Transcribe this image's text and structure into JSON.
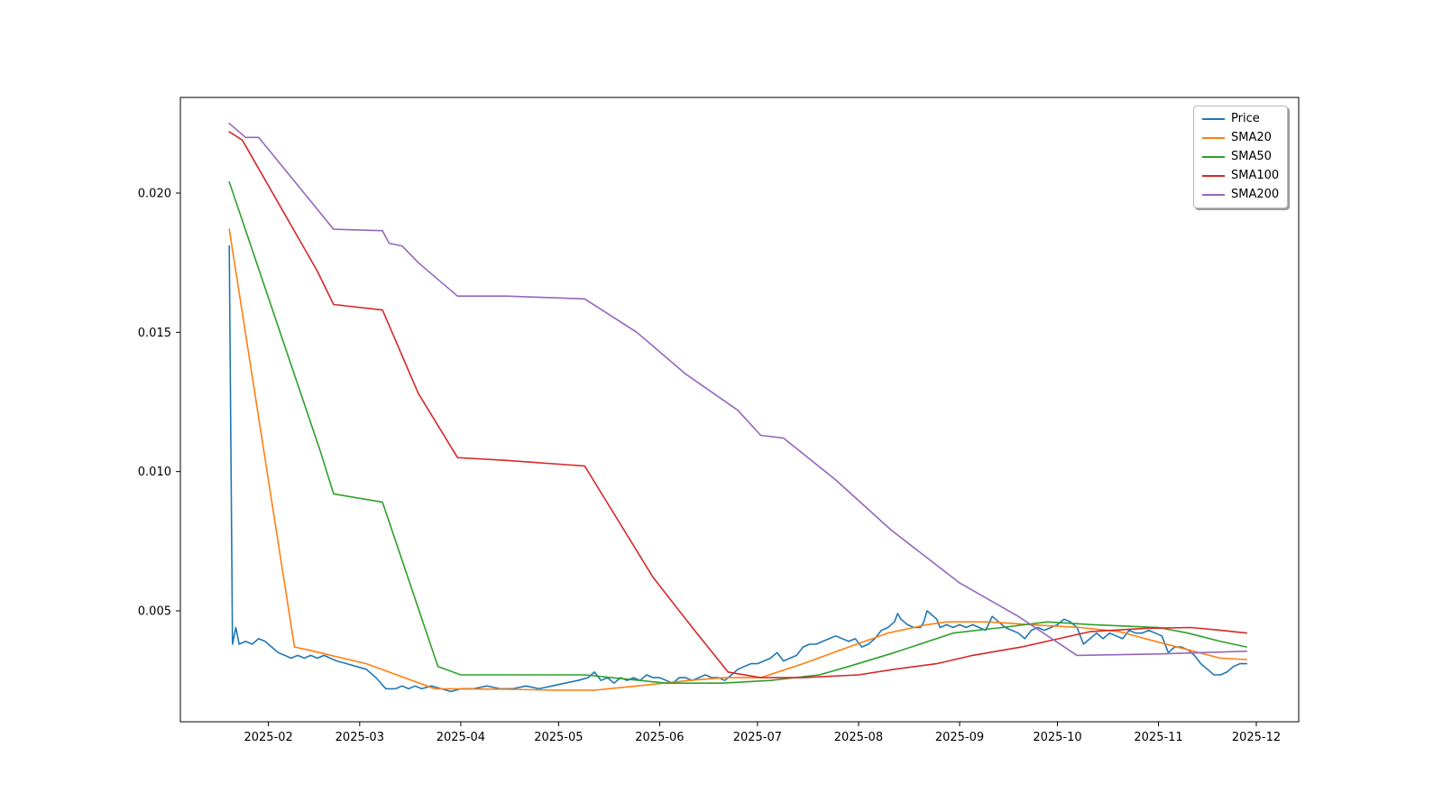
{
  "chart_data": {
    "type": "line",
    "title": "",
    "xlabel": "",
    "ylabel": "",
    "grid": false,
    "legend": {
      "position": "upper right",
      "entries": [
        "Price",
        "SMA20",
        "SMA50",
        "SMA100",
        "SMA200"
      ]
    },
    "x_axis": {
      "xlim": [
        "2025-01-05",
        "2025-12-14"
      ],
      "tick_dates": [
        "2025-02-01",
        "2025-03-01",
        "2025-04-01",
        "2025-05-01",
        "2025-06-01",
        "2025-07-01",
        "2025-08-01",
        "2025-09-01",
        "2025-10-01",
        "2025-11-01",
        "2025-12-01"
      ],
      "tick_labels": [
        "2025-02",
        "2025-03",
        "2025-04",
        "2025-05",
        "2025-06",
        "2025-07",
        "2025-08",
        "2025-09",
        "2025-10",
        "2025-11",
        "2025-12"
      ]
    },
    "y_axis": {
      "ylim": [
        0.001015,
        0.023434
      ],
      "tick_values": [
        0.005,
        0.01,
        0.015,
        0.02
      ],
      "tick_labels": [
        "0.005",
        "0.010",
        "0.015",
        "0.020"
      ]
    },
    "series": [
      {
        "name": "Price",
        "color": "#1f77b4",
        "points": [
          [
            "2025-01-20",
            0.0181
          ],
          [
            "2025-01-21",
            0.0038
          ],
          [
            "2025-01-22",
            0.0044
          ],
          [
            "2025-01-23",
            0.0038
          ],
          [
            "2025-01-25",
            0.0039
          ],
          [
            "2025-01-27",
            0.0038
          ],
          [
            "2025-01-29",
            0.004
          ],
          [
            "2025-01-31",
            0.0039
          ],
          [
            "2025-02-02",
            0.0037
          ],
          [
            "2025-02-04",
            0.0035
          ],
          [
            "2025-02-06",
            0.0034
          ],
          [
            "2025-02-08",
            0.0033
          ],
          [
            "2025-02-10",
            0.0034
          ],
          [
            "2025-02-12",
            0.0033
          ],
          [
            "2025-02-14",
            0.0034
          ],
          [
            "2025-02-16",
            0.0033
          ],
          [
            "2025-02-18",
            0.0034
          ],
          [
            "2025-02-20",
            0.0033
          ],
          [
            "2025-02-22",
            0.0032
          ],
          [
            "2025-02-25",
            0.0031
          ],
          [
            "2025-02-28",
            0.003
          ],
          [
            "2025-03-03",
            0.0029
          ],
          [
            "2025-03-06",
            0.0026
          ],
          [
            "2025-03-09",
            0.0022
          ],
          [
            "2025-03-12",
            0.0022
          ],
          [
            "2025-03-14",
            0.0023
          ],
          [
            "2025-03-16",
            0.0022
          ],
          [
            "2025-03-18",
            0.0023
          ],
          [
            "2025-03-20",
            0.0022
          ],
          [
            "2025-03-23",
            0.0023
          ],
          [
            "2025-03-26",
            0.0022
          ],
          [
            "2025-03-29",
            0.0021
          ],
          [
            "2025-04-01",
            0.0022
          ],
          [
            "2025-04-05",
            0.0022
          ],
          [
            "2025-04-09",
            0.0023
          ],
          [
            "2025-04-13",
            0.0022
          ],
          [
            "2025-04-17",
            0.0022
          ],
          [
            "2025-04-21",
            0.0023
          ],
          [
            "2025-04-25",
            0.0022
          ],
          [
            "2025-04-29",
            0.0023
          ],
          [
            "2025-05-03",
            0.0024
          ],
          [
            "2025-05-07",
            0.0025
          ],
          [
            "2025-05-10",
            0.0026
          ],
          [
            "2025-05-12",
            0.0028
          ],
          [
            "2025-05-14",
            0.0025
          ],
          [
            "2025-05-16",
            0.0026
          ],
          [
            "2025-05-18",
            0.0024
          ],
          [
            "2025-05-20",
            0.0026
          ],
          [
            "2025-05-22",
            0.0025
          ],
          [
            "2025-05-24",
            0.0026
          ],
          [
            "2025-05-26",
            0.0025
          ],
          [
            "2025-05-28",
            0.0027
          ],
          [
            "2025-05-30",
            0.0026
          ],
          [
            "2025-06-01",
            0.0026
          ],
          [
            "2025-06-03",
            0.0025
          ],
          [
            "2025-06-05",
            0.0024
          ],
          [
            "2025-06-07",
            0.0026
          ],
          [
            "2025-06-09",
            0.0026
          ],
          [
            "2025-06-11",
            0.0025
          ],
          [
            "2025-06-13",
            0.0026
          ],
          [
            "2025-06-15",
            0.0027
          ],
          [
            "2025-06-17",
            0.0026
          ],
          [
            "2025-06-19",
            0.0026
          ],
          [
            "2025-06-21",
            0.0025
          ],
          [
            "2025-06-23",
            0.0027
          ],
          [
            "2025-06-25",
            0.0029
          ],
          [
            "2025-06-27",
            0.003
          ],
          [
            "2025-06-29",
            0.0031
          ],
          [
            "2025-07-01",
            0.0031
          ],
          [
            "2025-07-03",
            0.0032
          ],
          [
            "2025-07-05",
            0.0033
          ],
          [
            "2025-07-07",
            0.0035
          ],
          [
            "2025-07-09",
            0.0032
          ],
          [
            "2025-07-11",
            0.0033
          ],
          [
            "2025-07-13",
            0.0034
          ],
          [
            "2025-07-15",
            0.0037
          ],
          [
            "2025-07-17",
            0.0038
          ],
          [
            "2025-07-19",
            0.0038
          ],
          [
            "2025-07-21",
            0.0039
          ],
          [
            "2025-07-23",
            0.004
          ],
          [
            "2025-07-25",
            0.0041
          ],
          [
            "2025-07-27",
            0.004
          ],
          [
            "2025-07-29",
            0.0039
          ],
          [
            "2025-07-31",
            0.004
          ],
          [
            "2025-08-02",
            0.0037
          ],
          [
            "2025-08-04",
            0.0038
          ],
          [
            "2025-08-06",
            0.004
          ],
          [
            "2025-08-08",
            0.0043
          ],
          [
            "2025-08-10",
            0.0044
          ],
          [
            "2025-08-12",
            0.0046
          ],
          [
            "2025-08-13",
            0.0049
          ],
          [
            "2025-08-14",
            0.0047
          ],
          [
            "2025-08-16",
            0.0045
          ],
          [
            "2025-08-18",
            0.0044
          ],
          [
            "2025-08-20",
            0.0044
          ],
          [
            "2025-08-21",
            0.0046
          ],
          [
            "2025-08-22",
            0.005
          ],
          [
            "2025-08-23",
            0.0049
          ],
          [
            "2025-08-25",
            0.0047
          ],
          [
            "2025-08-26",
            0.0044
          ],
          [
            "2025-08-28",
            0.0045
          ],
          [
            "2025-08-30",
            0.0044
          ],
          [
            "2025-09-01",
            0.0045
          ],
          [
            "2025-09-03",
            0.0044
          ],
          [
            "2025-09-05",
            0.0045
          ],
          [
            "2025-09-07",
            0.0044
          ],
          [
            "2025-09-09",
            0.0043
          ],
          [
            "2025-09-11",
            0.0048
          ],
          [
            "2025-09-13",
            0.0046
          ],
          [
            "2025-09-15",
            0.0044
          ],
          [
            "2025-09-17",
            0.0043
          ],
          [
            "2025-09-19",
            0.0042
          ],
          [
            "2025-09-21",
            0.004
          ],
          [
            "2025-09-23",
            0.0043
          ],
          [
            "2025-09-25",
            0.0044
          ],
          [
            "2025-09-27",
            0.0043
          ],
          [
            "2025-09-29",
            0.0044
          ],
          [
            "2025-10-01",
            0.0045
          ],
          [
            "2025-10-03",
            0.0047
          ],
          [
            "2025-10-05",
            0.0046
          ],
          [
            "2025-10-07",
            0.0044
          ],
          [
            "2025-10-09",
            0.0038
          ],
          [
            "2025-10-11",
            0.004
          ],
          [
            "2025-10-13",
            0.0042
          ],
          [
            "2025-10-15",
            0.004
          ],
          [
            "2025-10-17",
            0.0042
          ],
          [
            "2025-10-19",
            0.0041
          ],
          [
            "2025-10-21",
            0.004
          ],
          [
            "2025-10-23",
            0.0043
          ],
          [
            "2025-10-25",
            0.0042
          ],
          [
            "2025-10-27",
            0.0042
          ],
          [
            "2025-10-29",
            0.0043
          ],
          [
            "2025-10-31",
            0.0042
          ],
          [
            "2025-11-02",
            0.0041
          ],
          [
            "2025-11-04",
            0.0035
          ],
          [
            "2025-11-06",
            0.0037
          ],
          [
            "2025-11-08",
            0.0037
          ],
          [
            "2025-11-10",
            0.0036
          ],
          [
            "2025-11-12",
            0.0034
          ],
          [
            "2025-11-14",
            0.0031
          ],
          [
            "2025-11-16",
            0.0029
          ],
          [
            "2025-11-18",
            0.0027
          ],
          [
            "2025-11-20",
            0.0027
          ],
          [
            "2025-11-22",
            0.0028
          ],
          [
            "2025-11-24",
            0.003
          ],
          [
            "2025-11-26",
            0.0031
          ],
          [
            "2025-11-28",
            0.0031
          ]
        ]
      },
      {
        "name": "SMA20",
        "color": "#ff7f0e",
        "points": [
          [
            "2025-01-20",
            0.0187
          ],
          [
            "2025-02-09",
            0.0037
          ],
          [
            "2025-02-13",
            0.0036
          ],
          [
            "2025-03-03",
            0.0031
          ],
          [
            "2025-03-24",
            0.0022
          ],
          [
            "2025-04-15",
            0.00218
          ],
          [
            "2025-05-01",
            0.00215
          ],
          [
            "2025-05-12",
            0.00215
          ],
          [
            "2025-05-25",
            0.0023
          ],
          [
            "2025-06-10",
            0.0025
          ],
          [
            "2025-06-21",
            0.0026
          ],
          [
            "2025-07-02",
            0.0026
          ],
          [
            "2025-07-15",
            0.0031
          ],
          [
            "2025-07-29",
            0.0037
          ],
          [
            "2025-08-10",
            0.0042
          ],
          [
            "2025-08-22",
            0.0045
          ],
          [
            "2025-08-28",
            0.0046
          ],
          [
            "2025-09-10",
            0.0046
          ],
          [
            "2025-09-23",
            0.0045
          ],
          [
            "2025-10-08",
            0.0044
          ],
          [
            "2025-10-20",
            0.00425
          ],
          [
            "2025-10-28",
            0.004
          ],
          [
            "2025-11-10",
            0.0036
          ],
          [
            "2025-11-20",
            0.0033
          ],
          [
            "2025-11-28",
            0.00325
          ]
        ]
      },
      {
        "name": "SMA50",
        "color": "#2ca02c",
        "points": [
          [
            "2025-01-20",
            0.0204
          ],
          [
            "2025-02-17",
            0.0107
          ],
          [
            "2025-02-21",
            0.0092
          ],
          [
            "2025-03-08",
            0.0089
          ],
          [
            "2025-03-25",
            0.003
          ],
          [
            "2025-04-01",
            0.0027
          ],
          [
            "2025-04-20",
            0.0027
          ],
          [
            "2025-05-09",
            0.0027
          ],
          [
            "2025-06-03",
            0.0024
          ],
          [
            "2025-06-20",
            0.0024
          ],
          [
            "2025-07-05",
            0.0025
          ],
          [
            "2025-07-20",
            0.0027
          ],
          [
            "2025-07-29",
            0.003
          ],
          [
            "2025-08-12",
            0.0035
          ],
          [
            "2025-08-30",
            0.0042
          ],
          [
            "2025-09-14",
            0.0044
          ],
          [
            "2025-09-28",
            0.0046
          ],
          [
            "2025-10-12",
            0.0045
          ],
          [
            "2025-11-01",
            0.0044
          ],
          [
            "2025-11-10",
            0.0042
          ],
          [
            "2025-11-20",
            0.0039
          ],
          [
            "2025-11-28",
            0.0037
          ]
        ]
      },
      {
        "name": "SMA100",
        "color": "#d62728",
        "points": [
          [
            "2025-01-20",
            0.0222
          ],
          [
            "2025-01-24",
            0.0219
          ],
          [
            "2025-02-16",
            0.0172
          ],
          [
            "2025-02-21",
            0.016
          ],
          [
            "2025-03-08",
            0.0158
          ],
          [
            "2025-03-19",
            0.0128
          ],
          [
            "2025-03-31",
            0.0105
          ],
          [
            "2025-04-15",
            0.0104
          ],
          [
            "2025-05-09",
            0.0102
          ],
          [
            "2025-05-30",
            0.0062
          ],
          [
            "2025-06-11",
            0.0044
          ],
          [
            "2025-06-22",
            0.0028
          ],
          [
            "2025-07-02",
            0.0026
          ],
          [
            "2025-07-15",
            0.0026
          ],
          [
            "2025-08-01",
            0.0027
          ],
          [
            "2025-08-12",
            0.0029
          ],
          [
            "2025-08-25",
            0.0031
          ],
          [
            "2025-09-05",
            0.0034
          ],
          [
            "2025-09-20",
            0.0037
          ],
          [
            "2025-10-11",
            0.00425
          ],
          [
            "2025-10-28",
            0.00437
          ],
          [
            "2025-11-11",
            0.0044
          ],
          [
            "2025-11-20",
            0.0043
          ],
          [
            "2025-11-28",
            0.0042
          ]
        ]
      },
      {
        "name": "SMA200",
        "color": "#9467bd",
        "points": [
          [
            "2025-01-20",
            0.0225
          ],
          [
            "2025-01-25",
            0.022
          ],
          [
            "2025-01-29",
            0.022
          ],
          [
            "2025-02-21",
            0.0187
          ],
          [
            "2025-03-08",
            0.01865
          ],
          [
            "2025-03-10",
            0.0182
          ],
          [
            "2025-03-14",
            0.0181
          ],
          [
            "2025-03-19",
            0.0175
          ],
          [
            "2025-03-31",
            0.0163
          ],
          [
            "2025-04-15",
            0.0163
          ],
          [
            "2025-05-09",
            0.0162
          ],
          [
            "2025-05-25",
            0.015
          ],
          [
            "2025-06-09",
            0.0135
          ],
          [
            "2025-06-25",
            0.0122
          ],
          [
            "2025-07-02",
            0.0113
          ],
          [
            "2025-07-09",
            0.0112
          ],
          [
            "2025-07-25",
            0.0097
          ],
          [
            "2025-08-11",
            0.0079
          ],
          [
            "2025-09-01",
            0.006
          ],
          [
            "2025-09-19",
            0.0048
          ],
          [
            "2025-10-07",
            0.0034
          ],
          [
            "2025-11-01",
            0.00345
          ],
          [
            "2025-11-28",
            0.00355
          ]
        ]
      }
    ]
  }
}
